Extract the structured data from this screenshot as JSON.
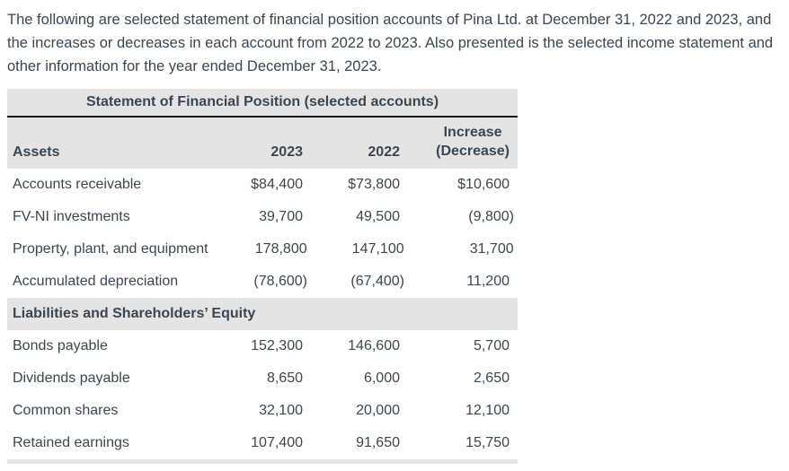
{
  "intro": {
    "text": "The following are selected statement of financial position accounts of Pina Ltd. at December 31, 2022 and 2023, and the increases or decreases in each account from 2022 to 2023. Also presented is the selected income statement and other information for the year ended December 31, 2023."
  },
  "table": {
    "title": "Statement of Financial Position (selected accounts)",
    "header": {
      "assets_label": "Assets",
      "col_2023": "2023",
      "col_2022": "2022",
      "change_line1": "Increase",
      "change_line2": "(Decrease)"
    },
    "sections": [
      {
        "header": "",
        "rows": [
          {
            "account": "Accounts receivable",
            "y2023": "$84,400",
            "y2022": "$73,800",
            "change": "$10,600"
          },
          {
            "account": "FV-NI investments",
            "y2023": "39,700",
            "y2022": "49,500",
            "change": "(9,800)"
          },
          {
            "account": "Property, plant, and equipment",
            "y2023": "178,800",
            "y2022": "147,100",
            "change": "31,700"
          },
          {
            "account": "Accumulated depreciation",
            "y2023": "(78,600)",
            "y2022": "(67,400)",
            "change": "11,200"
          }
        ]
      },
      {
        "header": "Liabilities and Shareholders’ Equity",
        "rows": [
          {
            "account": "Bonds payable",
            "y2023": "152,300",
            "y2022": "146,600",
            "change": "5,700"
          },
          {
            "account": "Dividends payable",
            "y2023": "8,650",
            "y2022": "6,000",
            "change": "2,650"
          },
          {
            "account": "Common shares",
            "y2023": "32,100",
            "y2022": "20,000",
            "change": "12,100"
          },
          {
            "account": "Retained earnings",
            "y2023": "107,400",
            "y2022": "91,650",
            "change": "15,750"
          }
        ]
      }
    ]
  },
  "colors": {
    "band_gray": "#e4e4e4",
    "rule_dark": "#17191b",
    "text": "#3b4650"
  }
}
